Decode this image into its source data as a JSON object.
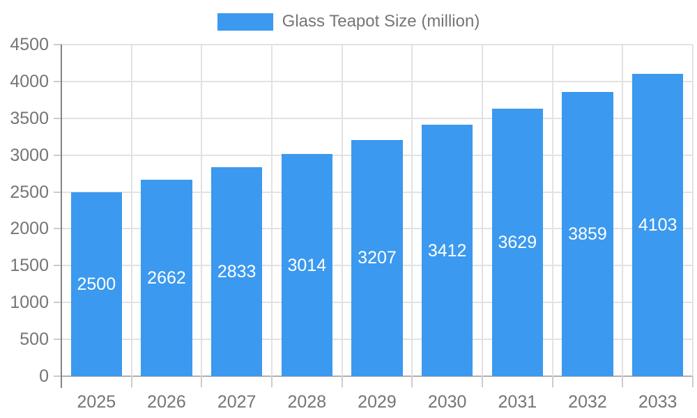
{
  "chart_data": {
    "type": "bar",
    "title": "Glass Teapot Size (million)",
    "series_name": "Glass Teapot Size (million)",
    "categories": [
      "2025",
      "2026",
      "2027",
      "2028",
      "2029",
      "2030",
      "2031",
      "2032",
      "2033"
    ],
    "values": [
      2500,
      2662,
      2833,
      3014,
      3207,
      3412,
      3629,
      3859,
      4103
    ],
    "xlabel": "",
    "ylabel": "",
    "ylim": [
      0,
      4500
    ],
    "y_tick_step": 500,
    "y_tick_labels": [
      "0",
      "500",
      "1000",
      "1500",
      "2000",
      "2500",
      "3000",
      "3500",
      "4000",
      "4500"
    ],
    "grid": true,
    "legend_position": "top",
    "bar_labels": "inside-center"
  },
  "colors": {
    "bar": "#3B99EF",
    "bar_label": "#ffffff",
    "axis_label": "#757575",
    "gridline": "#e2e2e2",
    "zero_line": "#b0b0b0",
    "axis_line": "#848484",
    "tick": "#cccccc"
  }
}
